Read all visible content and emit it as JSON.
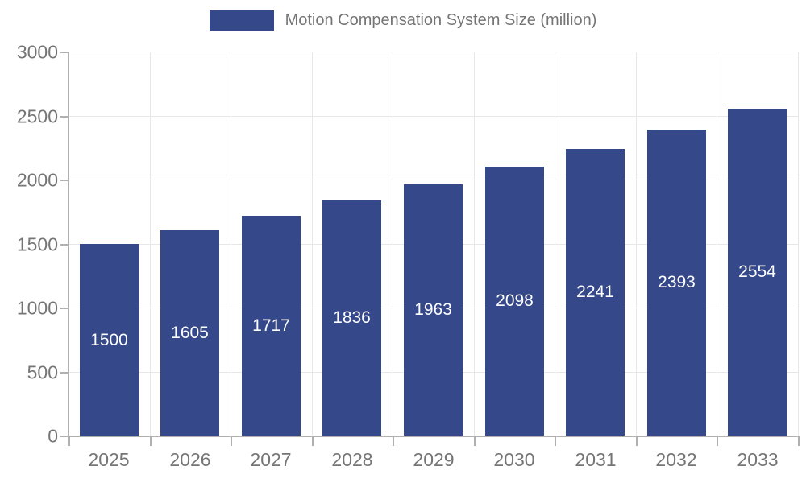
{
  "legend": {
    "label": "Motion Compensation System Size (million)"
  },
  "colors": {
    "bar": "#35488a",
    "grid": "#e7e7e7",
    "axis": "#b0b0b0",
    "tick_text": "#757575",
    "value_text": "#ffffff",
    "background": "#ffffff"
  },
  "chart_data": {
    "type": "bar",
    "title": "Motion Compensation System Size (million)",
    "categories": [
      "2025",
      "2026",
      "2027",
      "2028",
      "2029",
      "2030",
      "2031",
      "2032",
      "2033"
    ],
    "values": [
      1500,
      1605,
      1717,
      1836,
      1963,
      2098,
      2241,
      2393,
      2554
    ],
    "xlabel": "",
    "ylabel": "",
    "ylim": [
      0,
      3000
    ],
    "ytick_step": 500,
    "yticks": [
      "0",
      "500",
      "1000",
      "1500",
      "2000",
      "2500",
      "3000"
    ],
    "grid": true,
    "legend_position": "top",
    "value_labels": "inside-center"
  }
}
